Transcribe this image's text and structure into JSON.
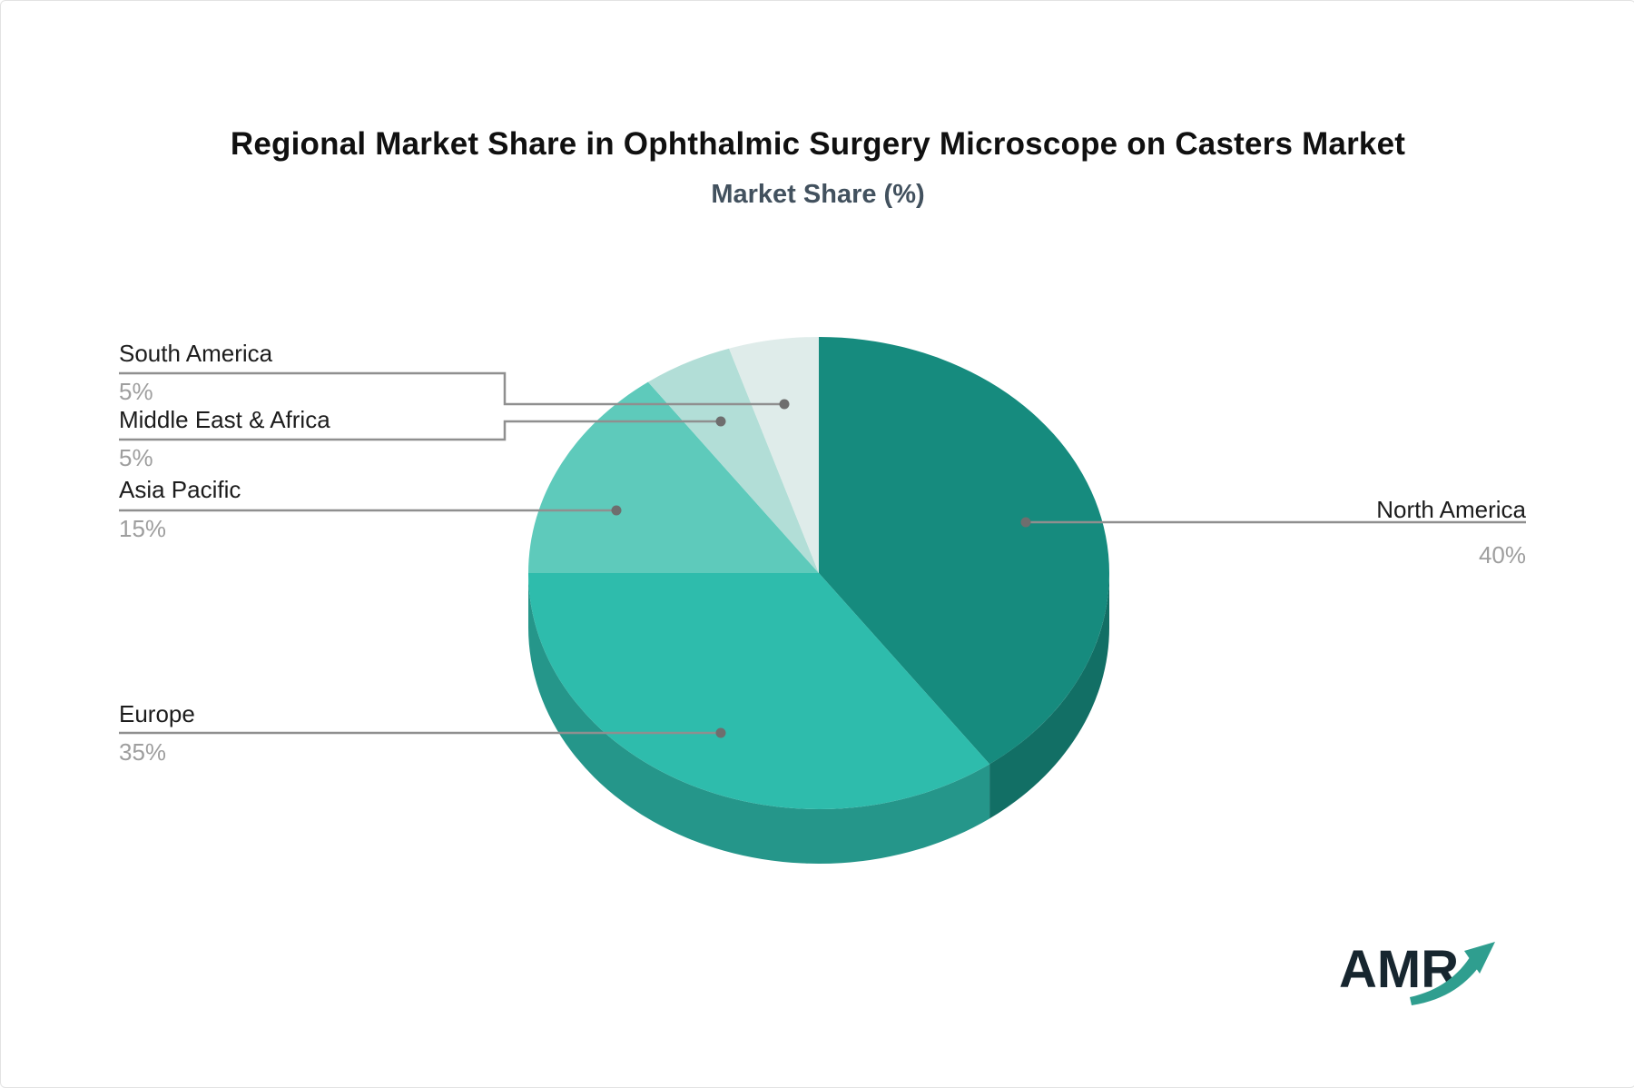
{
  "title": "Regional Market Share in Ophthalmic Surgery Microscope on Casters Market",
  "subtitle": "Market Share (%)",
  "logo": {
    "text": "AMR"
  },
  "chart_data": {
    "type": "pie",
    "style": "3d",
    "start_angle_deg": 0,
    "direction": "clockwise",
    "labels": [
      "North America",
      "Europe",
      "Asia Pacific",
      "Middle East & Africa",
      "South America"
    ],
    "values": [
      40,
      35,
      15,
      5,
      5
    ],
    "display_values": [
      "40%",
      "35%",
      "15%",
      "5%",
      "5%"
    ],
    "colors": [
      "#168b7e",
      "#2ebcac",
      "#5ecabb",
      "#b2ded7",
      "#dfecea"
    ],
    "leader_line_color": "#8f8f8f",
    "leader_dot_color": "#6e6e6e",
    "label_text_color": "#1c1c1c",
    "value_text_color": "#9e9e9e",
    "legend_position": "outside-callouts",
    "background": "#ffffff"
  }
}
